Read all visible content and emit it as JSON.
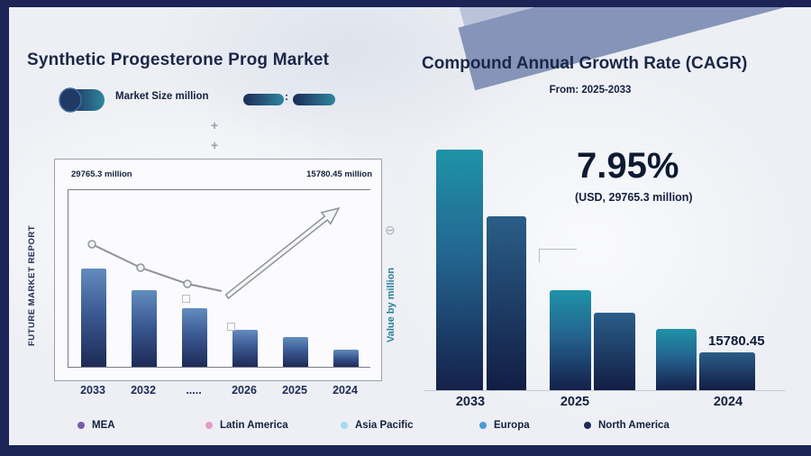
{
  "page": {
    "left_title": "Synthetic Progesterone Prog Market",
    "legend_market_size": "Market Size million"
  },
  "decor": {
    "plus": "+",
    "colon": ":",
    "circle_minus": "⊖"
  },
  "colors": {
    "navy": "#1d2a55",
    "teal": "#2a8098",
    "title": "#1b2747",
    "background": "#edeff4",
    "accent_band": "#8594b8"
  },
  "bottom_legend": [
    {
      "label": "MEA",
      "color": "#7a5ba6"
    },
    {
      "label": "Latin America",
      "color": "#e09ec4"
    },
    {
      "label": "Asia Pacific",
      "color": "#a5dbec"
    },
    {
      "label": "Europa",
      "color": "#4a9bd5"
    },
    {
      "label": "North America",
      "color": "#1d2a55"
    }
  ],
  "chart_data": [
    {
      "type": "bar",
      "panel": "left",
      "title": "Synthetic Progesterone Prog Market",
      "series_label": "Market Size million",
      "categories": [
        "2033",
        "2032",
        ".....",
        "2026",
        "2025",
        "2024"
      ],
      "rel_heights": [
        0.55,
        0.43,
        0.33,
        0.205,
        0.165,
        0.095
      ],
      "labeled_values": {
        "2033": 29765.3,
        "2024": 15780.45
      },
      "annotation_left": "29765.3 million",
      "annotation_right": "15780.45 million",
      "side_label": "FUTURE MARKET REPORT",
      "trend": "bars descend from 2033 to 2024 with marker line and large upward projection arrow",
      "legend_position": "top-left",
      "grid": false
    },
    {
      "type": "bar",
      "panel": "right",
      "title": "Compound Annual Growth Rate (CAGR)",
      "subtitle": "From: 2025-2033",
      "categories": [
        "2033",
        "2025",
        "2024"
      ],
      "series": [
        {
          "name": "primary",
          "rel_heights": [
            0.99,
            0.41,
            0.25
          ]
        },
        {
          "name": "secondary",
          "rel_heights": [
            0.715,
            0.318,
            0.155
          ]
        }
      ],
      "cagr_percent": 7.95,
      "cagr_text": "7.95%",
      "cagr_note": "(USD, 29765.3 million)",
      "bar_value_label": "15780.45",
      "ylabel": "Value by million",
      "grid": false
    }
  ]
}
